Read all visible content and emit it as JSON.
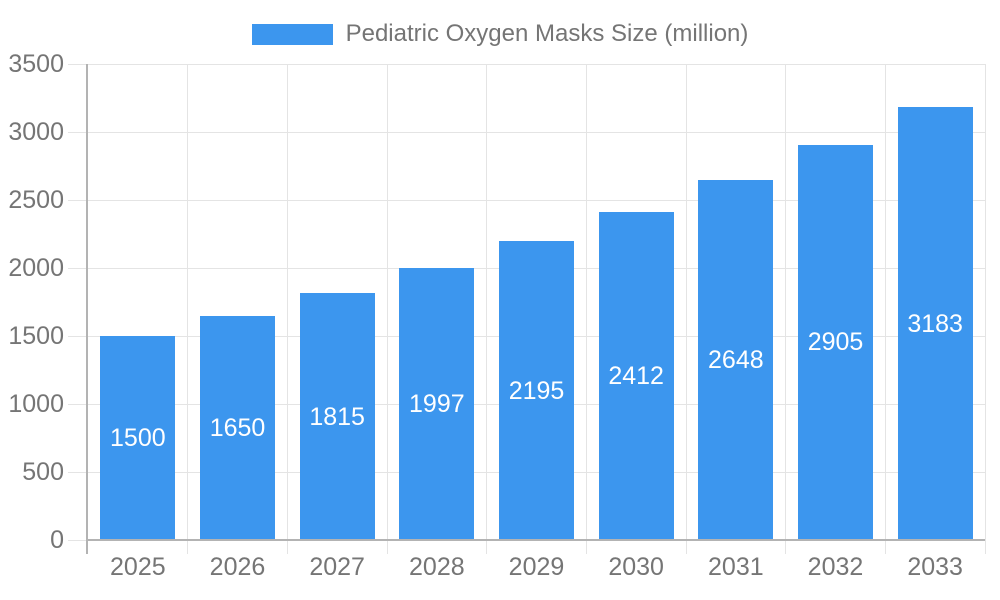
{
  "chart_data": {
    "type": "bar",
    "title": "Pediatric Oxygen Masks Size (million)",
    "categories": [
      "2025",
      "2026",
      "2027",
      "2028",
      "2029",
      "2030",
      "2031",
      "2032",
      "2033"
    ],
    "values": [
      1500,
      1650,
      1815,
      1997,
      2195,
      2412,
      2648,
      2905,
      3183
    ],
    "xlabel": "",
    "ylabel": "",
    "ylim": [
      0,
      3500
    ],
    "yticks": [
      0,
      500,
      1000,
      1500,
      2000,
      2500,
      3000,
      3500
    ],
    "grid": true,
    "legend_position": "top",
    "value_labels": "inside-center",
    "colors": {
      "bar": "#3C96EE",
      "bar_label": "#FFFFFF",
      "axis_text": "#757575",
      "gridline": "#E4E4E4",
      "axis_line": "#B3B3B3",
      "background": "#FFFFFF"
    }
  }
}
